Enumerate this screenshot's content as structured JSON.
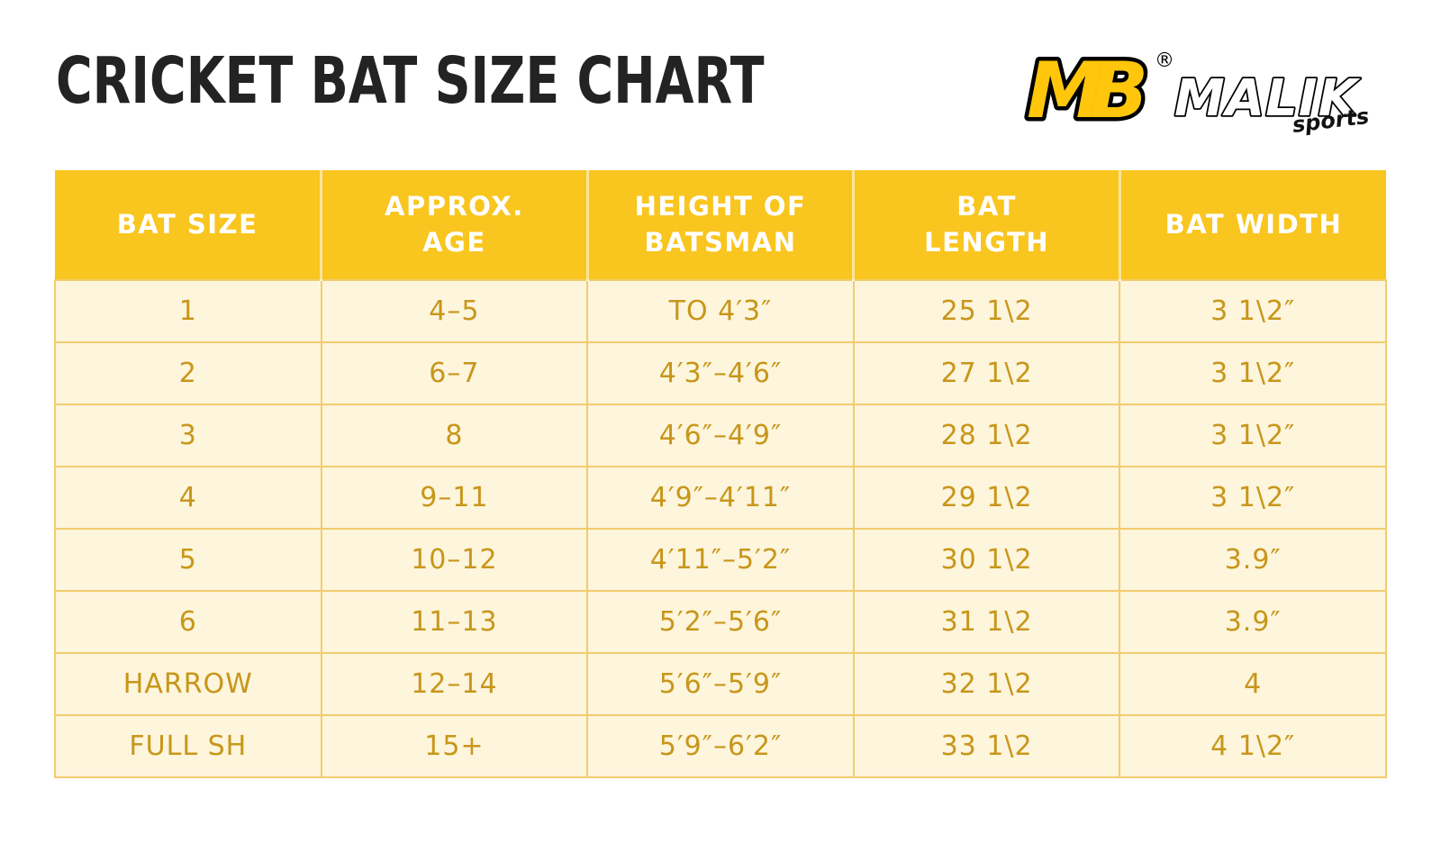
{
  "page_title": "CRICKET BAT SIZE CHART",
  "brand": {
    "initials": "MB",
    "registered_mark": "®",
    "name": "MALIK",
    "tagline": "sports"
  },
  "colors": {
    "header_bg": "#F9C51F",
    "row_bg": "#FDF5DC",
    "grid_line": "#F2CC6E",
    "cell_text": "#C8961A",
    "header_text": "#FFFFFF",
    "title_text": "#232323",
    "brand_yellow": "#FFC60B"
  },
  "chart_data": {
    "type": "table",
    "title": "CRICKET BAT SIZE CHART",
    "columns": [
      "BAT SIZE",
      "APPROX. AGE",
      "HEIGHT OF BATSMAN",
      "BAT LENGTH",
      "BAT WIDTH"
    ],
    "rows": [
      [
        "1",
        "4–5",
        "TO 4′3″",
        "25 1\\2",
        "3 1\\2″"
      ],
      [
        "2",
        "6–7",
        "4′3″–4′6″",
        "27 1\\2",
        "3 1\\2″"
      ],
      [
        "3",
        "8",
        "4′6″–4′9″",
        "28 1\\2",
        "3 1\\2″"
      ],
      [
        "4",
        "9–11",
        "4′9″–4′11″",
        "29 1\\2",
        "3 1\\2″"
      ],
      [
        "5",
        "10–12",
        "4′11″–5′2″",
        "30 1\\2",
        "3.9″"
      ],
      [
        "6",
        "11–13",
        "5′2″–5′6″",
        "31 1\\2",
        "3.9″"
      ],
      [
        "HARROW",
        "12–14",
        "5′6″–5′9″",
        "32 1\\2",
        "4"
      ],
      [
        "FULL SH",
        "15+",
        "5′9″–6′2″",
        "33 1\\2",
        "4 1\\2″"
      ]
    ]
  }
}
